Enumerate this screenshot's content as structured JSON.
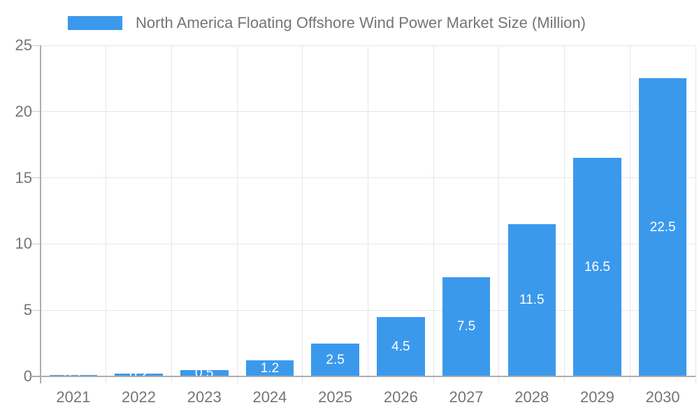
{
  "chart_data": {
    "type": "bar",
    "title": "North America Floating Offshore Wind Power Market Size (Million)",
    "legend_position": "top",
    "categories": [
      "2021",
      "2022",
      "2023",
      "2024",
      "2025",
      "2026",
      "2027",
      "2028",
      "2029",
      "2030"
    ],
    "series": [
      {
        "name": "North America Floating Offshore Wind Power Market Size (Million)",
        "values": [
          0.1,
          0.2,
          0.5,
          1.2,
          2.5,
          4.5,
          7.5,
          11.5,
          16.5,
          22.5
        ]
      }
    ],
    "data_labels": [
      "0.1",
      "0.2",
      "0.5",
      "1.2",
      "2.5",
      "4.5",
      "7.5",
      "11.5",
      "16.5",
      "22.5"
    ],
    "xlabel": "",
    "ylabel": "",
    "ylim": [
      0,
      25
    ],
    "yticks": [
      0,
      5,
      10,
      15,
      20,
      25
    ],
    "grid": true,
    "colors": {
      "bar": "#3b99ec",
      "bar_label_text": "#ffffff",
      "axis_text": "#757575",
      "gridline": "#e6e6e6",
      "tick_stub": "#cccccc",
      "axis_line": "#adadad",
      "background": "#ffffff"
    }
  }
}
